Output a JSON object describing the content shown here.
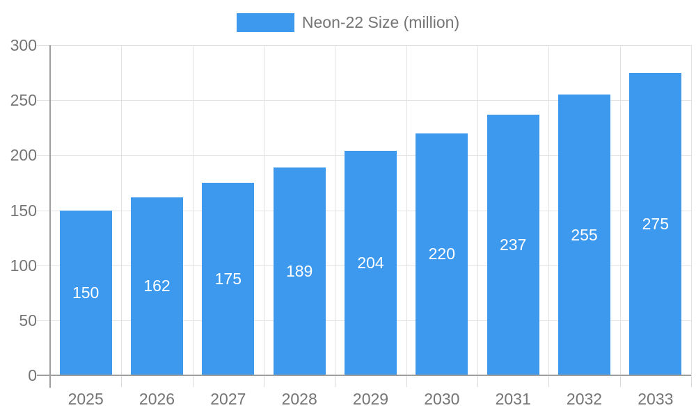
{
  "chart_data": {
    "type": "bar",
    "title": "",
    "legend": "Neon-22 Size (million)",
    "legend_position": "top-center",
    "categories": [
      "2025",
      "2026",
      "2027",
      "2028",
      "2029",
      "2030",
      "2031",
      "2032",
      "2033"
    ],
    "values": [
      150,
      162,
      175,
      189,
      204,
      220,
      237,
      255,
      275
    ],
    "xlabel": "",
    "ylabel": "",
    "ylim": [
      0,
      300
    ],
    "yticks": [
      0,
      50,
      100,
      150,
      200,
      250,
      300
    ],
    "grid": true,
    "colors": {
      "bar": "#3C99EE",
      "bar_label": "#FFFFFF",
      "axis_text": "#757575",
      "legend_text": "#757575",
      "gridline": "#E2E2E2",
      "axis_line": "#9E9E9E",
      "tick": "#D8D8D8",
      "background": "#FFFFFF"
    }
  }
}
